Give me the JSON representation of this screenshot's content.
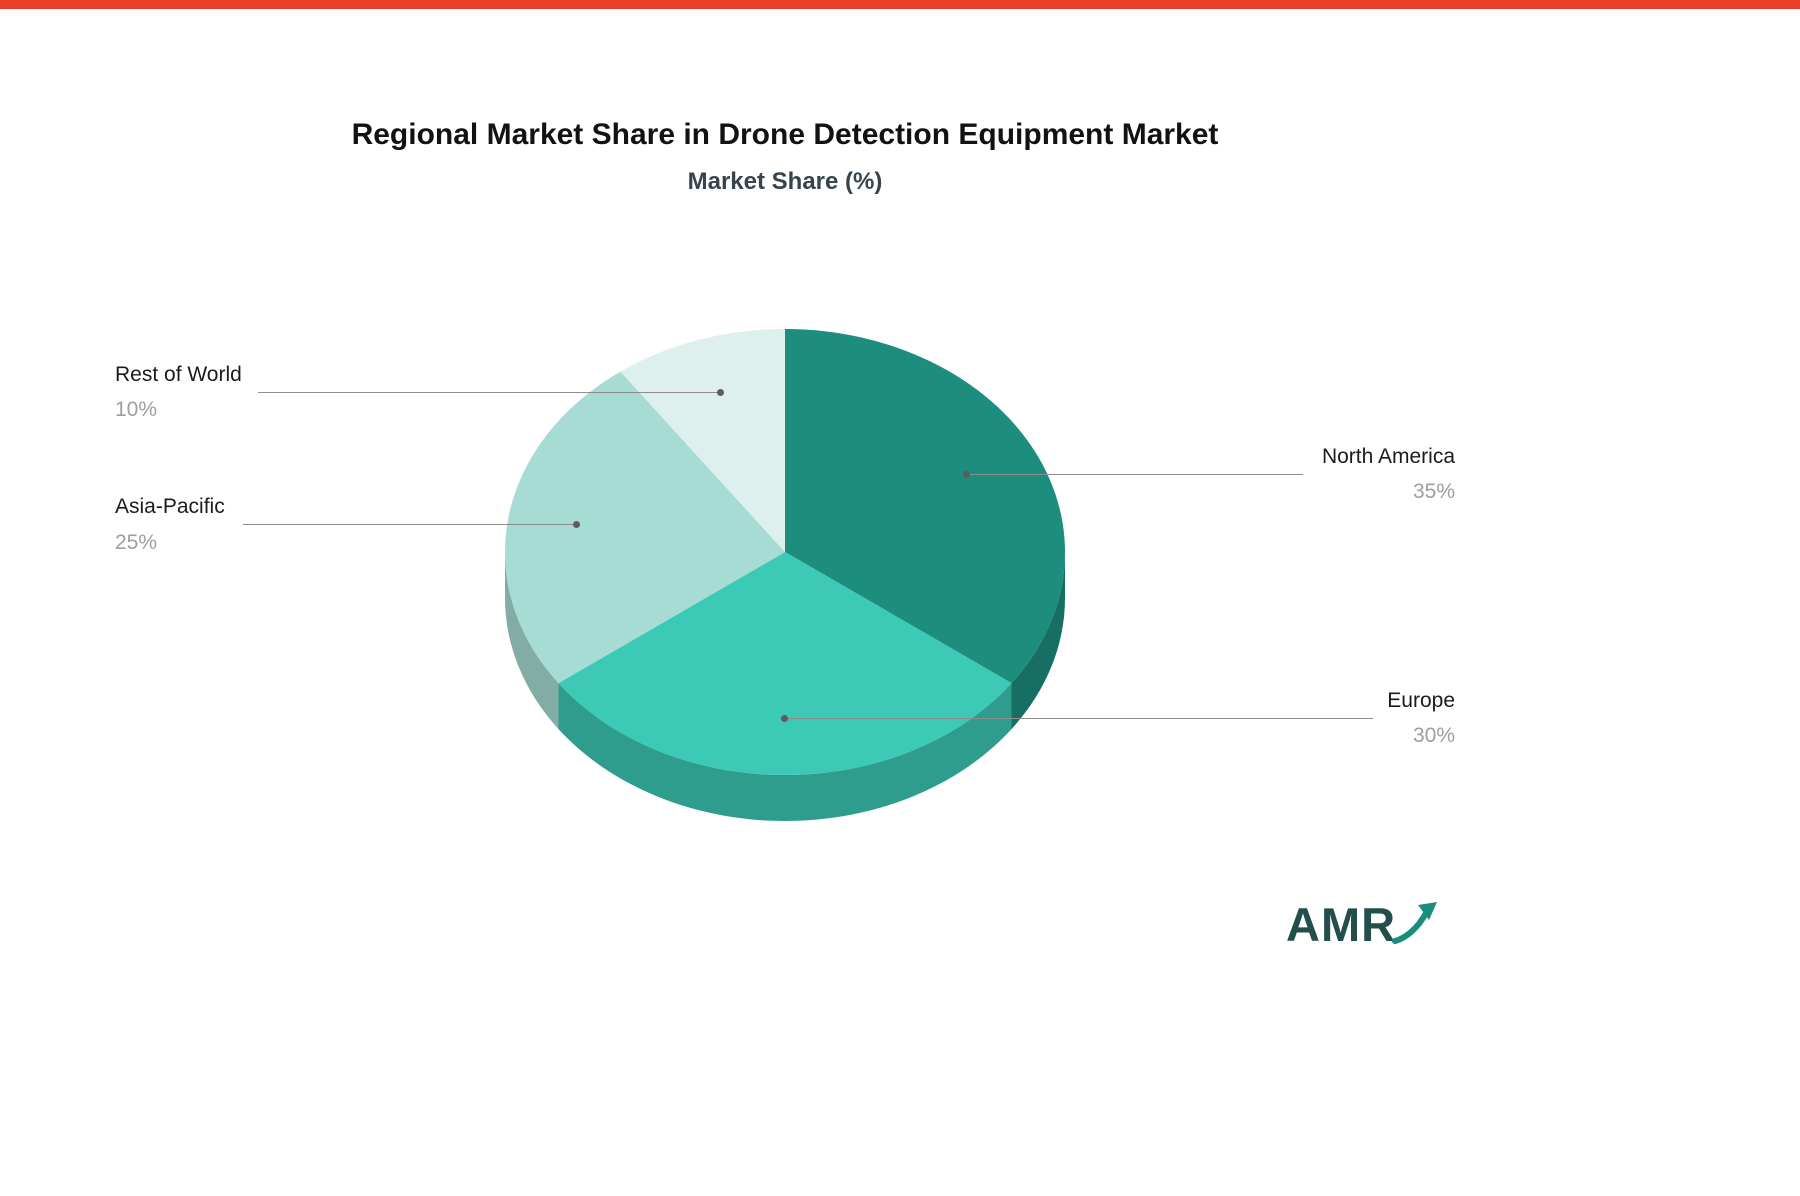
{
  "theme": {
    "top_bar_color": "#e8402a",
    "logo_color": "#224e4b",
    "logo_arrow_color": "#1a8e7e",
    "leader_line_color": "#8d8d8d",
    "label_color": "#1b1b1b",
    "value_color": "#9e9e9e"
  },
  "chart_data": {
    "type": "pie",
    "title": "Regional Market Share in Drone Detection Equipment Market",
    "subtitle": "Market Share (%)",
    "start_angle_deg": -90,
    "direction": "clockwise",
    "effect": "3d",
    "legend_position": "none",
    "slices": [
      {
        "label": "North America",
        "value": 35,
        "pct_label": "35%",
        "color": "#1d8d7d",
        "label_side": "right"
      },
      {
        "label": "Europe",
        "value": 30,
        "pct_label": "30%",
        "color": "#3cc9b6",
        "label_side": "right"
      },
      {
        "label": "Asia-Pacific",
        "value": 25,
        "pct_label": "25%",
        "color": "#a7dcd4",
        "label_side": "left"
      },
      {
        "label": "Rest of World",
        "value": 10,
        "pct_label": "10%",
        "color": "#def0ed",
        "label_side": "left"
      }
    ]
  },
  "branding": {
    "logo_text": "AMR"
  }
}
